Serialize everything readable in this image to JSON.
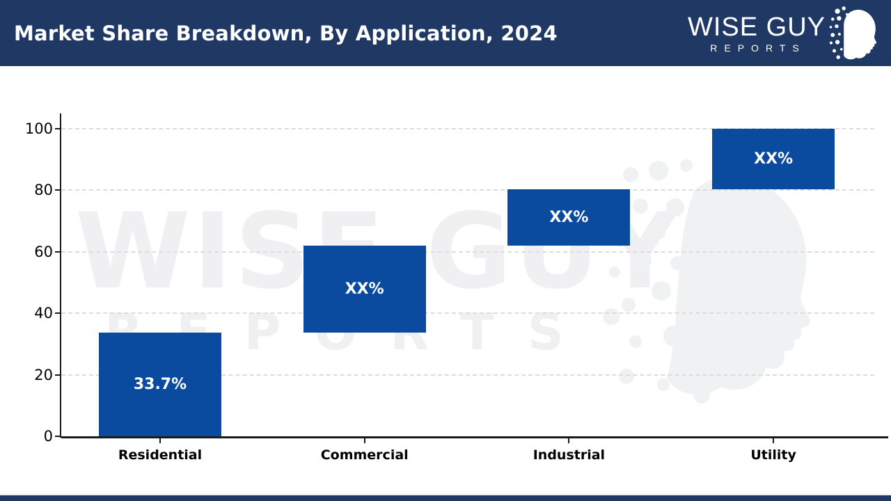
{
  "header": {
    "title": "Market Share Breakdown, By Application, 2024",
    "bg_color": "#1f3864",
    "logo": {
      "line1": "WISE GUY",
      "line2": "REPORTS"
    }
  },
  "watermark": {
    "line1": "WISE GUY",
    "line2": "REPORTS"
  },
  "chart_data": {
    "type": "bar",
    "subtype": "waterfall",
    "title": "Market Share Breakdown, By Application, 2024",
    "categories": [
      "Residential",
      "Commercial",
      "Industrial",
      "Utility"
    ],
    "segments": [
      {
        "category": "Residential",
        "start": 0,
        "end": 33.7,
        "label": "33.7%"
      },
      {
        "category": "Commercial",
        "start": 33.7,
        "end": 62.0,
        "label": "XX%"
      },
      {
        "category": "Industrial",
        "start": 62.0,
        "end": 80.3,
        "label": "XX%"
      },
      {
        "category": "Utility",
        "start": 80.3,
        "end": 100,
        "label": "XX%"
      }
    ],
    "yticks": [
      0,
      20,
      40,
      60,
      80,
      100
    ],
    "ylim": [
      0,
      105
    ],
    "xlabel": "",
    "ylabel": "",
    "grid": "horizontal-dashed",
    "legend": "none",
    "bar_color": "#0a4a9f",
    "value_label_color": "#ffffff"
  }
}
